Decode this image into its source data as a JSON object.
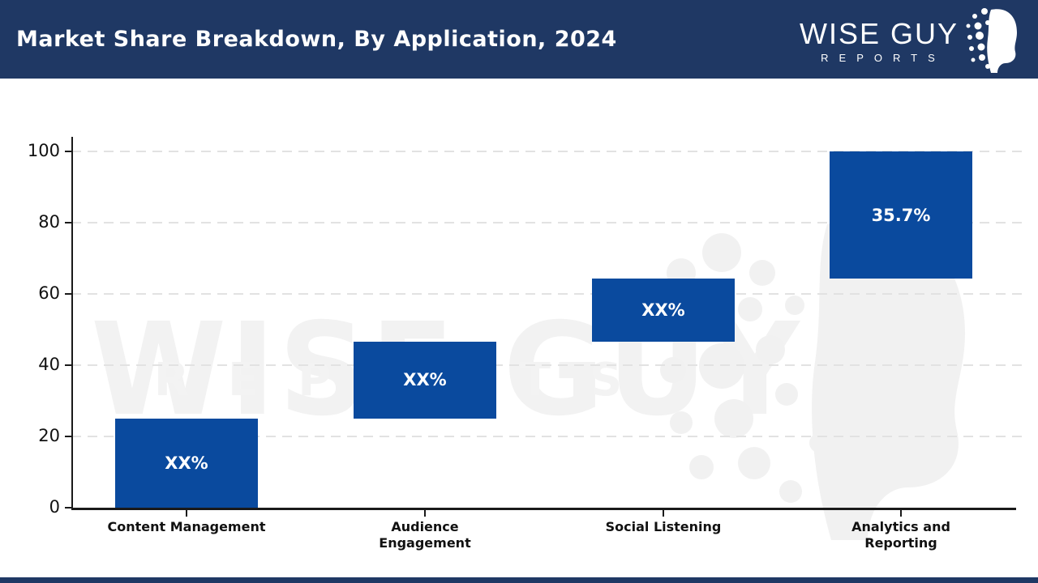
{
  "header": {
    "title": "Market Share Breakdown, By Application, 2024",
    "bg_color": "#1f3864",
    "logo": {
      "line1": "WISE GUY",
      "line2": "REPORTS"
    }
  },
  "watermark": {
    "text": "WISE GUY",
    "subtext": "REPORTS"
  },
  "chart_data": {
    "type": "bar",
    "subtype": "waterfall",
    "title": "Market Share Breakdown, By Application, 2024",
    "categories": [
      "Content Management",
      "Audience Engagement",
      "Social Listening",
      "Analytics and Reporting"
    ],
    "categories_lines": [
      [
        "Content Management"
      ],
      [
        "Audience",
        "Engagement"
      ],
      [
        "Social Listening"
      ],
      [
        "Analytics and",
        "Reporting"
      ]
    ],
    "segments": [
      {
        "category": "Content Management",
        "start": 0,
        "end": 25,
        "label": "XX%"
      },
      {
        "category": "Audience Engagement",
        "start": 25,
        "end": 46.6,
        "label": "XX%"
      },
      {
        "category": "Social Listening",
        "start": 46.6,
        "end": 64.3,
        "label": "XX%"
      },
      {
        "category": "Analytics and Reporting",
        "start": 64.3,
        "end": 100,
        "value": 35.7,
        "label": "35.7%"
      }
    ],
    "xlabel": "",
    "ylabel": "",
    "ylim": [
      0,
      100
    ],
    "yticks": [
      0,
      20,
      40,
      60,
      80,
      100
    ],
    "grid": "horizontal-dashed",
    "legend": "none",
    "bar_color": "#0a4a9e"
  },
  "colors": {
    "header_bg": "#1f3864",
    "bar": "#0a4a9e",
    "grid": "#e2e2e2",
    "axis": "#1a1a1a",
    "watermark": "#f2f2f2",
    "footer_bg": "#1f3864"
  }
}
